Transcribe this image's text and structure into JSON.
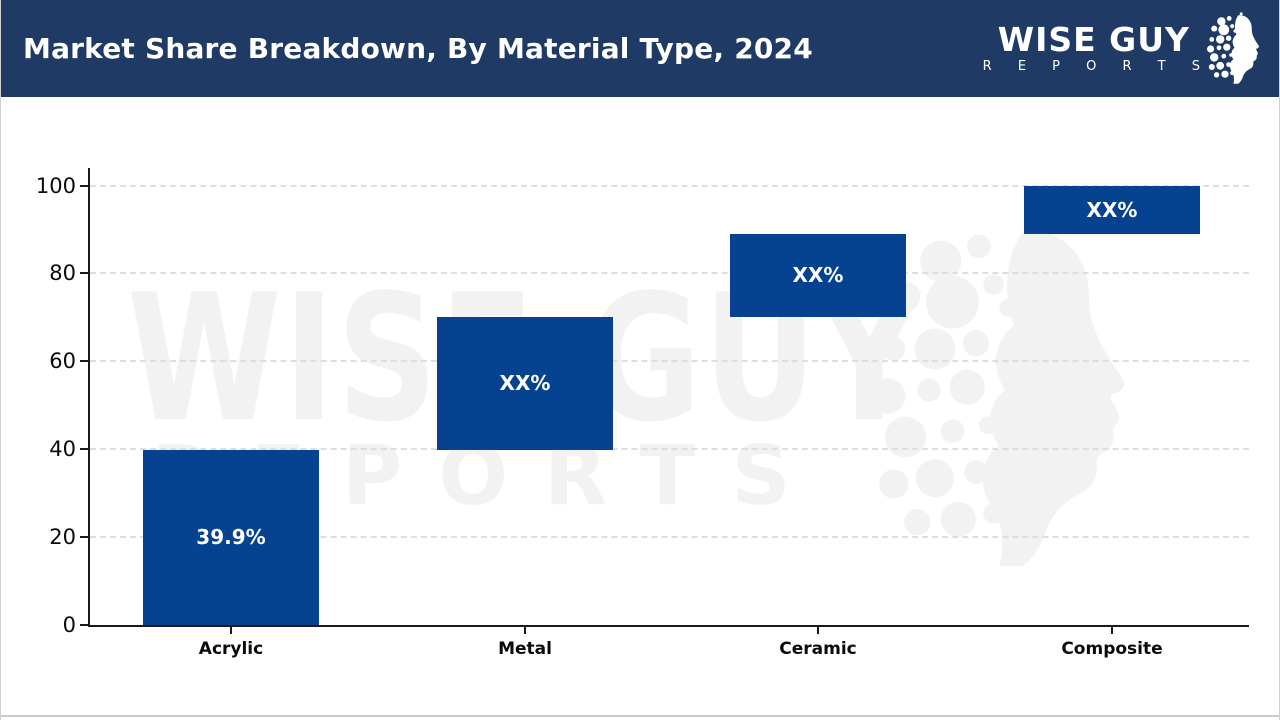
{
  "header": {
    "title": "Market Share Breakdown, By Material Type, 2024",
    "logo": {
      "line1": "WISE GUY",
      "line2": "R E P O R T S"
    }
  },
  "watermark": {
    "line1": "WISE GUY",
    "line2": "REPORTS"
  },
  "colors": {
    "header_navy": "#1f3a64",
    "bar_blue": "#05428f",
    "gridline_gray": "#dedede",
    "watermark_gray": "#f2f2f2",
    "axis_black": "#1a1a1a"
  },
  "chart_data": {
    "type": "bar",
    "subtype": "waterfall",
    "title": "Market Share Breakdown, By Material Type, 2024",
    "categories": [
      "Acrylic",
      "Metal",
      "Ceramic",
      "Composite"
    ],
    "segments": [
      {
        "category": "Acrylic",
        "start": 0,
        "end": 39.9,
        "label": "39.9%"
      },
      {
        "category": "Metal",
        "start": 39.9,
        "end": 70.2,
        "label": "XX%"
      },
      {
        "category": "Ceramic",
        "start": 70.2,
        "end": 88.9,
        "label": "XX%"
      },
      {
        "category": "Composite",
        "start": 88.9,
        "end": 100,
        "label": "XX%"
      }
    ],
    "values_delta": [
      39.9,
      30.3,
      18.7,
      11.1
    ],
    "xlabel": "",
    "ylabel": "",
    "yticks": [
      0,
      20,
      40,
      60,
      80,
      100
    ],
    "ylim": [
      0,
      104
    ],
    "grid": "horizontal-dashed",
    "legend": null,
    "bar_color": "#05428f"
  }
}
